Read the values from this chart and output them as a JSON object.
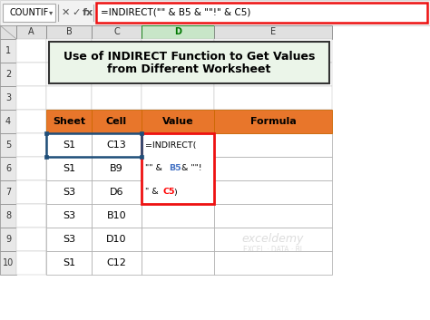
{
  "title_line1": "Use of INDIRECT Function to Get Values",
  "title_line2": "from Different Worksheet",
  "name_box": "COUNTIF",
  "col_headers": [
    "A",
    "B",
    "C",
    "D",
    "E"
  ],
  "row_numbers": [
    "1",
    "2",
    "3",
    "4",
    "5",
    "6",
    "7",
    "8",
    "9",
    "10"
  ],
  "table_headers": [
    "Sheet",
    "Cell",
    "Value",
    "Formula"
  ],
  "table_data": [
    [
      "S1",
      "C13"
    ],
    [
      "S1",
      "B9"
    ],
    [
      "S3",
      "D6"
    ],
    [
      "S3",
      "B10"
    ],
    [
      "S3",
      "D10"
    ],
    [
      "S1",
      "C12"
    ]
  ],
  "header_bg": "#E8762B",
  "title_bg": "#EBF5E9",
  "title_border": "#333333",
  "cell_bg": "#FFFFFF",
  "formula_bar_border": "#EE1111",
  "formula_cell_border": "#EE1111",
  "col_header_bg": "#E0E0E0",
  "row_header_bg": "#E8E8E8",
  "top_bar_bg": "#F2F2F2",
  "selected_col_bg": "#C8E6C8",
  "sel_border_color": "#1F4E79",
  "b5_color": "#4472C4",
  "c5_color": "#FF0000",
  "watermark_color": "#BBBBBB",
  "grid_line_color": "#BBBBBB",
  "formula_bar_text": "=INDIRECT(\"\"\" & B5 & \"\"\"!\" & C5)"
}
